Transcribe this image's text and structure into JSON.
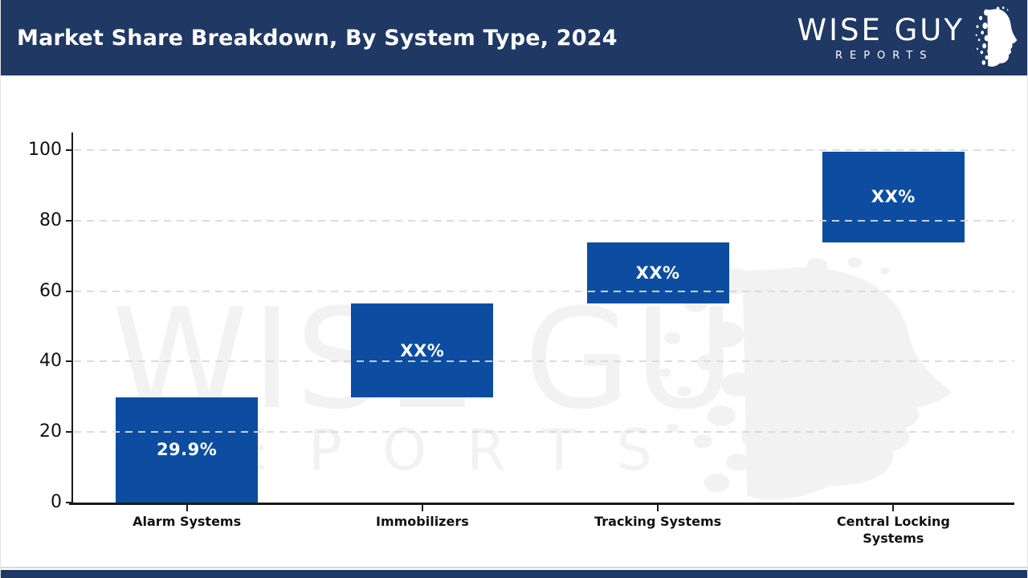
{
  "header": {
    "title": "Market Share Breakdown, By System Type, 2024",
    "brand_name": "WISE GUY",
    "brand_sub": "REPORTS"
  },
  "watermark": {
    "line1": "WISE GU",
    "line2": "REPORTS"
  },
  "colors": {
    "header_bg": "#1f3864",
    "footer_bg": "#1f3864",
    "bar": "#0c4da2",
    "bar_label": "#ffffff",
    "gridline": "#d9d9d9",
    "axis": "#1a1a1a",
    "watermark": "#f2f2f2",
    "background": "#ffffff"
  },
  "chart_data": {
    "type": "bar",
    "variant": "waterfall",
    "title": "Market Share Breakdown, By System Type, 2024",
    "categories": [
      "Alarm Systems",
      "Immobilizers",
      "Tracking Systems",
      "Central Locking Systems"
    ],
    "series": [
      {
        "name": "Market Share",
        "segments": [
          {
            "category": "Alarm Systems",
            "start": 0,
            "end": 29.9,
            "label": "29.9%"
          },
          {
            "category": "Immobilizers",
            "start": 29.9,
            "end": 56.4,
            "label": "XX%"
          },
          {
            "category": "Tracking Systems",
            "start": 56.4,
            "end": 73.9,
            "label": "XX%"
          },
          {
            "category": "Central Locking Systems",
            "start": 73.9,
            "end": 99.5,
            "label": "XX%"
          }
        ]
      }
    ],
    "xlabel": "",
    "ylabel": "",
    "ylim": [
      0,
      100
    ],
    "y_ticks": [
      0,
      20,
      40,
      60,
      80,
      100
    ],
    "grid": "horizontal-dashed",
    "legend": "none"
  }
}
